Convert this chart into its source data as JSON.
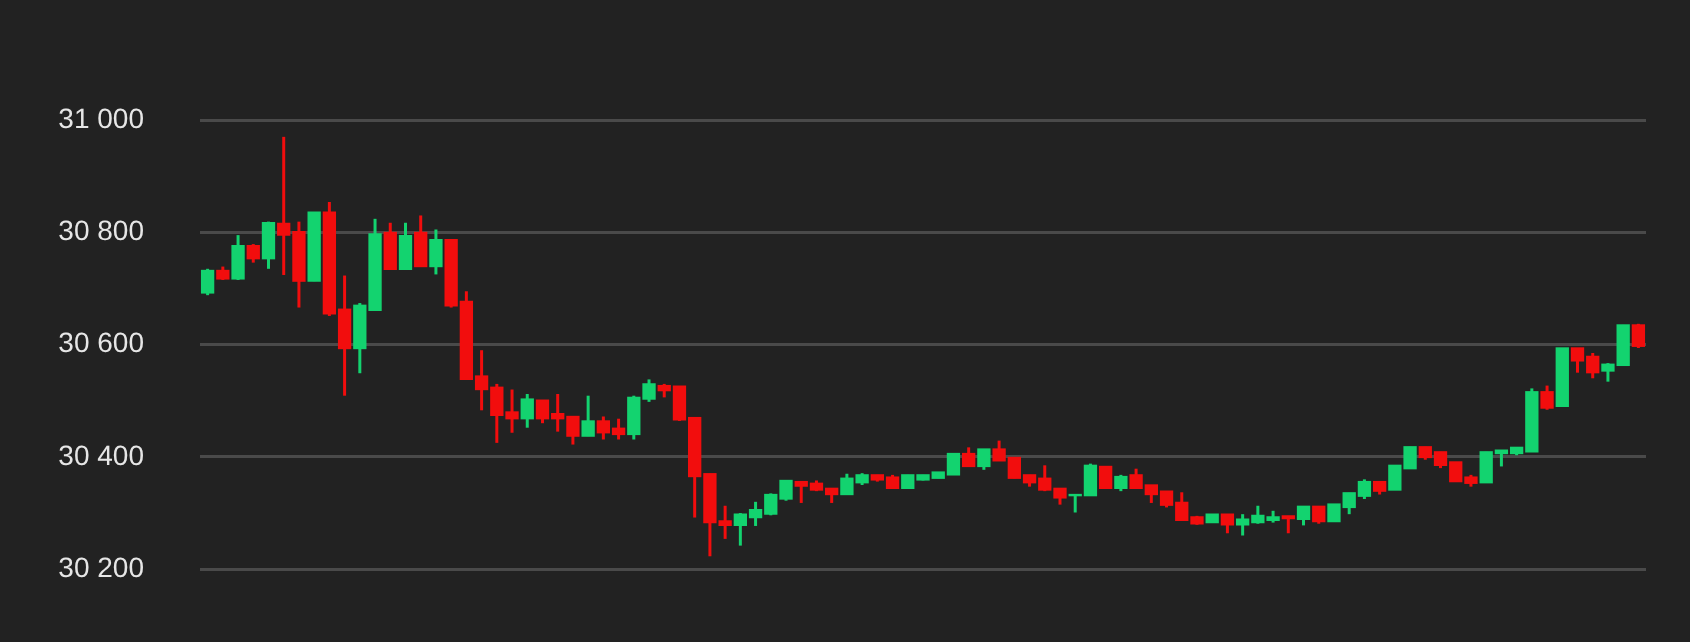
{
  "chart_data": {
    "type": "candlestick",
    "categories": [
      null,
      null,
      null,
      null,
      null,
      null,
      null,
      null,
      null,
      null,
      null,
      null,
      null,
      null,
      null,
      null,
      null,
      null,
      null,
      null,
      null,
      null,
      null,
      null,
      null,
      null,
      null,
      null,
      null,
      null,
      null,
      null,
      null,
      null,
      null,
      null,
      null,
      null,
      null,
      null,
      null,
      null,
      null,
      null,
      null,
      null,
      null,
      null,
      null,
      null,
      null,
      null,
      null,
      null,
      null,
      null,
      null,
      null,
      null,
      null,
      null,
      null,
      null,
      null,
      null,
      null,
      null,
      null,
      null,
      null,
      null,
      null,
      null,
      null,
      null,
      null,
      null,
      null,
      null,
      null,
      null,
      null,
      null,
      null,
      null,
      null,
      null,
      null,
      null,
      null,
      null,
      null,
      null,
      null,
      null
    ],
    "ohlc": [
      [
        30692,
        30735,
        30688,
        30732
      ],
      [
        30732,
        30739,
        30715,
        30717
      ],
      [
        30717,
        30795,
        30715,
        30776
      ],
      [
        30776,
        30779,
        30746,
        30753
      ],
      [
        30753,
        30819,
        30735,
        30817
      ],
      [
        30816,
        30970,
        30724,
        30795
      ],
      [
        30801,
        30819,
        30666,
        30713
      ],
      [
        30713,
        30836,
        30713,
        30836
      ],
      [
        30836,
        30854,
        30651,
        30655
      ],
      [
        30663,
        30723,
        30509,
        30593
      ],
      [
        30593,
        30674,
        30549,
        30670
      ],
      [
        30661,
        30824,
        30661,
        30797
      ],
      [
        30800,
        30817,
        30734,
        30734
      ],
      [
        30734,
        30817,
        30734,
        30794
      ],
      [
        30800,
        30830,
        30739,
        30739
      ],
      [
        30739,
        30805,
        30725,
        30787
      ],
      [
        30787,
        30787,
        30666,
        30669
      ],
      [
        30677,
        30695,
        30538,
        30538
      ],
      [
        30544,
        30590,
        30483,
        30520
      ],
      [
        30524,
        30530,
        30425,
        30474
      ],
      [
        30480,
        30520,
        30443,
        30468
      ],
      [
        30468,
        30512,
        30452,
        30503
      ],
      [
        30501,
        30501,
        30460,
        30468
      ],
      [
        30477,
        30512,
        30445,
        30468
      ],
      [
        30472,
        30472,
        30422,
        30437
      ],
      [
        30437,
        30509,
        30437,
        30464
      ],
      [
        30464,
        30472,
        30431,
        30443
      ],
      [
        30451,
        30468,
        30431,
        30440
      ],
      [
        30440,
        30509,
        30431,
        30506
      ],
      [
        30503,
        30538,
        30498,
        30530
      ],
      [
        30527,
        30530,
        30506,
        30518
      ],
      [
        30526,
        30526,
        30464,
        30466
      ],
      [
        30470,
        30470,
        30292,
        30365
      ],
      [
        30370,
        30370,
        30223,
        30283
      ],
      [
        30286,
        30313,
        30254,
        30278
      ],
      [
        30278,
        30300,
        30242,
        30298
      ],
      [
        30292,
        30320,
        30277,
        30306
      ],
      [
        30298,
        30335,
        30296,
        30333
      ],
      [
        30325,
        30358,
        30322,
        30358
      ],
      [
        30356,
        30356,
        30318,
        30348
      ],
      [
        30353,
        30358,
        30339,
        30341
      ],
      [
        30344,
        30344,
        30318,
        30333
      ],
      [
        30333,
        30370,
        30333,
        30362
      ],
      [
        30354,
        30371,
        30350,
        30368
      ],
      [
        30368,
        30368,
        30356,
        30359
      ],
      [
        30364,
        30368,
        30344,
        30344
      ],
      [
        30344,
        30368,
        30344,
        30368
      ],
      [
        30359,
        30368,
        30358,
        30368
      ],
      [
        30362,
        30373,
        30362,
        30373
      ],
      [
        30368,
        30406,
        30368,
        30406
      ],
      [
        30406,
        30417,
        30383,
        30383
      ],
      [
        30383,
        30414,
        30377,
        30414
      ],
      [
        30414,
        30429,
        30393,
        30393
      ],
      [
        30399,
        30399,
        30362,
        30362
      ],
      [
        30368,
        30368,
        30347,
        30354
      ],
      [
        30362,
        30385,
        30339,
        30341
      ],
      [
        30344,
        30344,
        30315,
        30327
      ],
      [
        30331,
        30333,
        30301,
        30333
      ],
      [
        30331,
        30388,
        30331,
        30385
      ],
      [
        30383,
        30383,
        30344,
        30344
      ],
      [
        30344,
        30368,
        30339,
        30365
      ],
      [
        30368,
        30379,
        30344,
        30344
      ],
      [
        30350,
        30350,
        30318,
        30333
      ],
      [
        30339,
        30339,
        30310,
        30314
      ],
      [
        30319,
        30337,
        30287,
        30287
      ],
      [
        30293,
        30295,
        30279,
        30281
      ],
      [
        30283,
        30298,
        30283,
        30298
      ],
      [
        30298,
        30298,
        30264,
        30279
      ],
      [
        30279,
        30298,
        30260,
        30289
      ],
      [
        30283,
        30313,
        30281,
        30296
      ],
      [
        30287,
        30304,
        30283,
        30293
      ],
      [
        30295,
        30295,
        30264,
        30290
      ],
      [
        30289,
        30312,
        30278,
        30312
      ],
      [
        30312,
        30312,
        30281,
        30285
      ],
      [
        30285,
        30316,
        30285,
        30316
      ],
      [
        30310,
        30336,
        30298,
        30336
      ],
      [
        30330,
        30360,
        30325,
        30356
      ],
      [
        30356,
        30356,
        30333,
        30339
      ],
      [
        30341,
        30385,
        30341,
        30385
      ],
      [
        30379,
        30418,
        30379,
        30418
      ],
      [
        30418,
        30418,
        30395,
        30399
      ],
      [
        30409,
        30409,
        30380,
        30385
      ],
      [
        30391,
        30391,
        30356,
        30356
      ],
      [
        30364,
        30368,
        30347,
        30353
      ],
      [
        30354,
        30409,
        30354,
        30409
      ],
      [
        30406,
        30412,
        30383,
        30412
      ],
      [
        30406,
        30417,
        30403,
        30417
      ],
      [
        30409,
        30522,
        30409,
        30516
      ],
      [
        30516,
        30527,
        30484,
        30487
      ],
      [
        30490,
        30594,
        30490,
        30594
      ],
      [
        30594,
        30594,
        30550,
        30571
      ],
      [
        30579,
        30585,
        30540,
        30550
      ],
      [
        30553,
        30567,
        30534,
        30565
      ],
      [
        30563,
        30635,
        30563,
        30635
      ],
      [
        30635,
        30637,
        30594,
        30597
      ]
    ],
    "colors": [
      "#13d36f",
      "#f20d0d",
      "#13d36f",
      "#f20d0d",
      "#13d36f",
      "#f20d0d",
      "#f20d0d",
      "#13d36f",
      "#f20d0d",
      "#f20d0d",
      "#13d36f",
      "#13d36f",
      "#f20d0d",
      "#13d36f",
      "#f20d0d",
      "#13d36f",
      "#f20d0d",
      "#f20d0d",
      "#f20d0d",
      "#f20d0d",
      "#f20d0d",
      "#13d36f",
      "#f20d0d",
      "#f20d0d",
      "#f20d0d",
      "#13d36f",
      "#f20d0d",
      "#f20d0d",
      "#13d36f",
      "#13d36f",
      "#f20d0d",
      "#f20d0d",
      "#f20d0d",
      "#f20d0d",
      "#f20d0d",
      "#13d36f",
      "#13d36f",
      "#13d36f",
      "#13d36f",
      "#f20d0d",
      "#f20d0d",
      "#f20d0d",
      "#13d36f",
      "#13d36f",
      "#f20d0d",
      "#f20d0d",
      "#13d36f",
      "#13d36f",
      "#13d36f",
      "#13d36f",
      "#f20d0d",
      "#13d36f",
      "#f20d0d",
      "#f20d0d",
      "#f20d0d",
      "#f20d0d",
      "#f20d0d",
      "#13d36f",
      "#13d36f",
      "#f20d0d",
      "#13d36f",
      "#f20d0d",
      "#f20d0d",
      "#f20d0d",
      "#f20d0d",
      "#f20d0d",
      "#13d36f",
      "#f20d0d",
      "#13d36f",
      "#13d36f",
      "#13d36f",
      "#f20d0d",
      "#13d36f",
      "#f20d0d",
      "#13d36f",
      "#13d36f",
      "#13d36f",
      "#f20d0d",
      "#13d36f",
      "#13d36f",
      "#f20d0d",
      "#f20d0d",
      "#f20d0d",
      "#f20d0d",
      "#13d36f",
      "#13d36f",
      "#13d36f",
      "#13d36f",
      "#f20d0d",
      "#13d36f",
      "#f20d0d",
      "#f20d0d",
      "#13d36f",
      "#13d36f",
      "#f20d0d"
    ],
    "ylim": [
      30200,
      31000
    ],
    "yticks": [
      {
        "value": 30200,
        "label": "30 200"
      },
      {
        "value": 30400,
        "label": "30 400"
      },
      {
        "value": 30600,
        "label": "30 600"
      },
      {
        "value": 30800,
        "label": "30 800"
      },
      {
        "value": 31000,
        "label": "31 000"
      }
    ],
    "grid": "y"
  }
}
